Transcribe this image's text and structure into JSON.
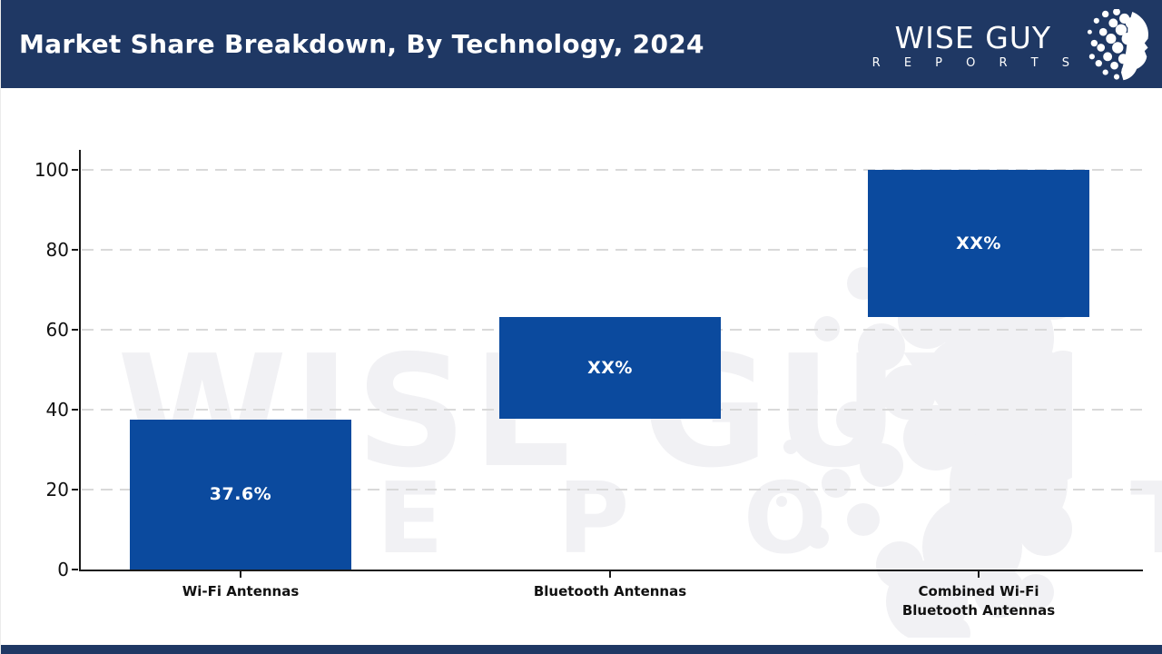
{
  "header": {
    "title": "Market Share Breakdown, By Technology, 2024",
    "logo": {
      "primary": "WISE GUY",
      "secondary": "REPORTS"
    }
  },
  "watermark": {
    "line1": "WISE GUY",
    "line2": "REPORTS"
  },
  "colors": {
    "header_bg": "#1f3864",
    "footer_bg": "#1f3864",
    "bar": "#0b4a9e",
    "bar_label": "#ffffff",
    "grid": "#d9d9d9",
    "axis": "#1a1a1a",
    "watermark": "#f1f1f4"
  },
  "chart_data": {
    "type": "bar",
    "subtype": "waterfall",
    "title": "Market Share Breakdown, By Technology, 2024",
    "categories": [
      "Wi-Fi Antennas",
      "Bluetooth Antennas",
      "Combined Wi-Fi\nBluetooth Antennas"
    ],
    "segments": [
      {
        "category": "Wi-Fi Antennas",
        "from": 0,
        "to": 37.6,
        "label": "37.6%"
      },
      {
        "category": "Bluetooth Antennas",
        "from": 37.7,
        "to": 63.2,
        "label": "XX%"
      },
      {
        "category": "Combined Wi-Fi Bluetooth Antennas",
        "from": 63.2,
        "to": 100,
        "label": "XX%"
      }
    ],
    "yticks": [
      0,
      20,
      40,
      60,
      80,
      100
    ],
    "ylim": [
      0,
      105
    ],
    "grid": "horizontal-dashed",
    "legend": "none"
  }
}
